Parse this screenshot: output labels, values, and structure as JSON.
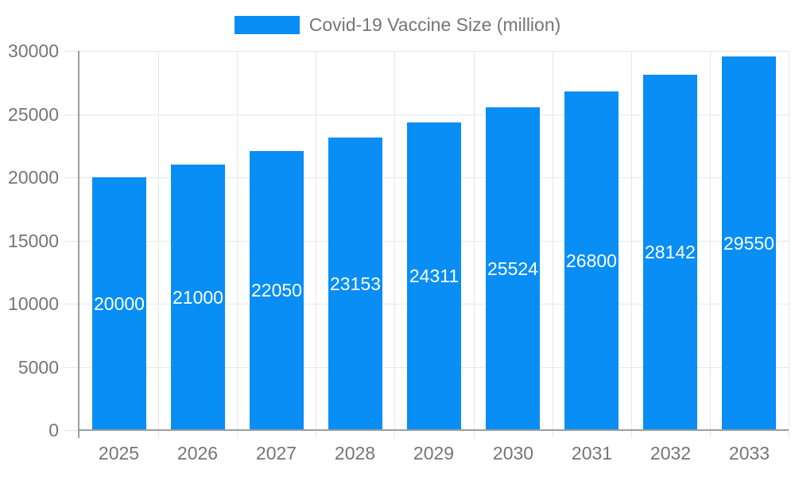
{
  "chart_data": {
    "type": "bar",
    "title": "Covid-19 Vaccine Size (million)",
    "legend_label": "Covid-19 Vaccine Size (million)",
    "legend_position": "top",
    "categories": [
      "2025",
      "2026",
      "2027",
      "2028",
      "2029",
      "2030",
      "2031",
      "2032",
      "2033"
    ],
    "series": [
      {
        "name": "Covid-19 Vaccine Size (million)",
        "values": [
          20000,
          21000,
          22050,
          23153,
          24311,
          25524,
          26800,
          28142,
          29550
        ]
      }
    ],
    "bar_value_labels": [
      "20000",
      "21000",
      "22050",
      "23153",
      "24311",
      "25524",
      "26800",
      "28142",
      "29550"
    ],
    "xlabel": "",
    "ylabel": "",
    "ylim": [
      0,
      30000
    ],
    "y_ticks": [
      0,
      5000,
      10000,
      15000,
      20000,
      25000,
      30000
    ],
    "y_tick_labels": [
      "0",
      "5000",
      "10000",
      "15000",
      "20000",
      "25000",
      "30000"
    ],
    "grid": true,
    "value_label_position": "inside-center"
  },
  "colors": {
    "bar": "#088EF5",
    "bar_label_text": "#FFFFFF",
    "axis_line": "#9E9E9E",
    "gridline": "#E6E6E6",
    "tick_text": "#757575",
    "legend_text": "#757575",
    "background": "#FFFFFF"
  }
}
